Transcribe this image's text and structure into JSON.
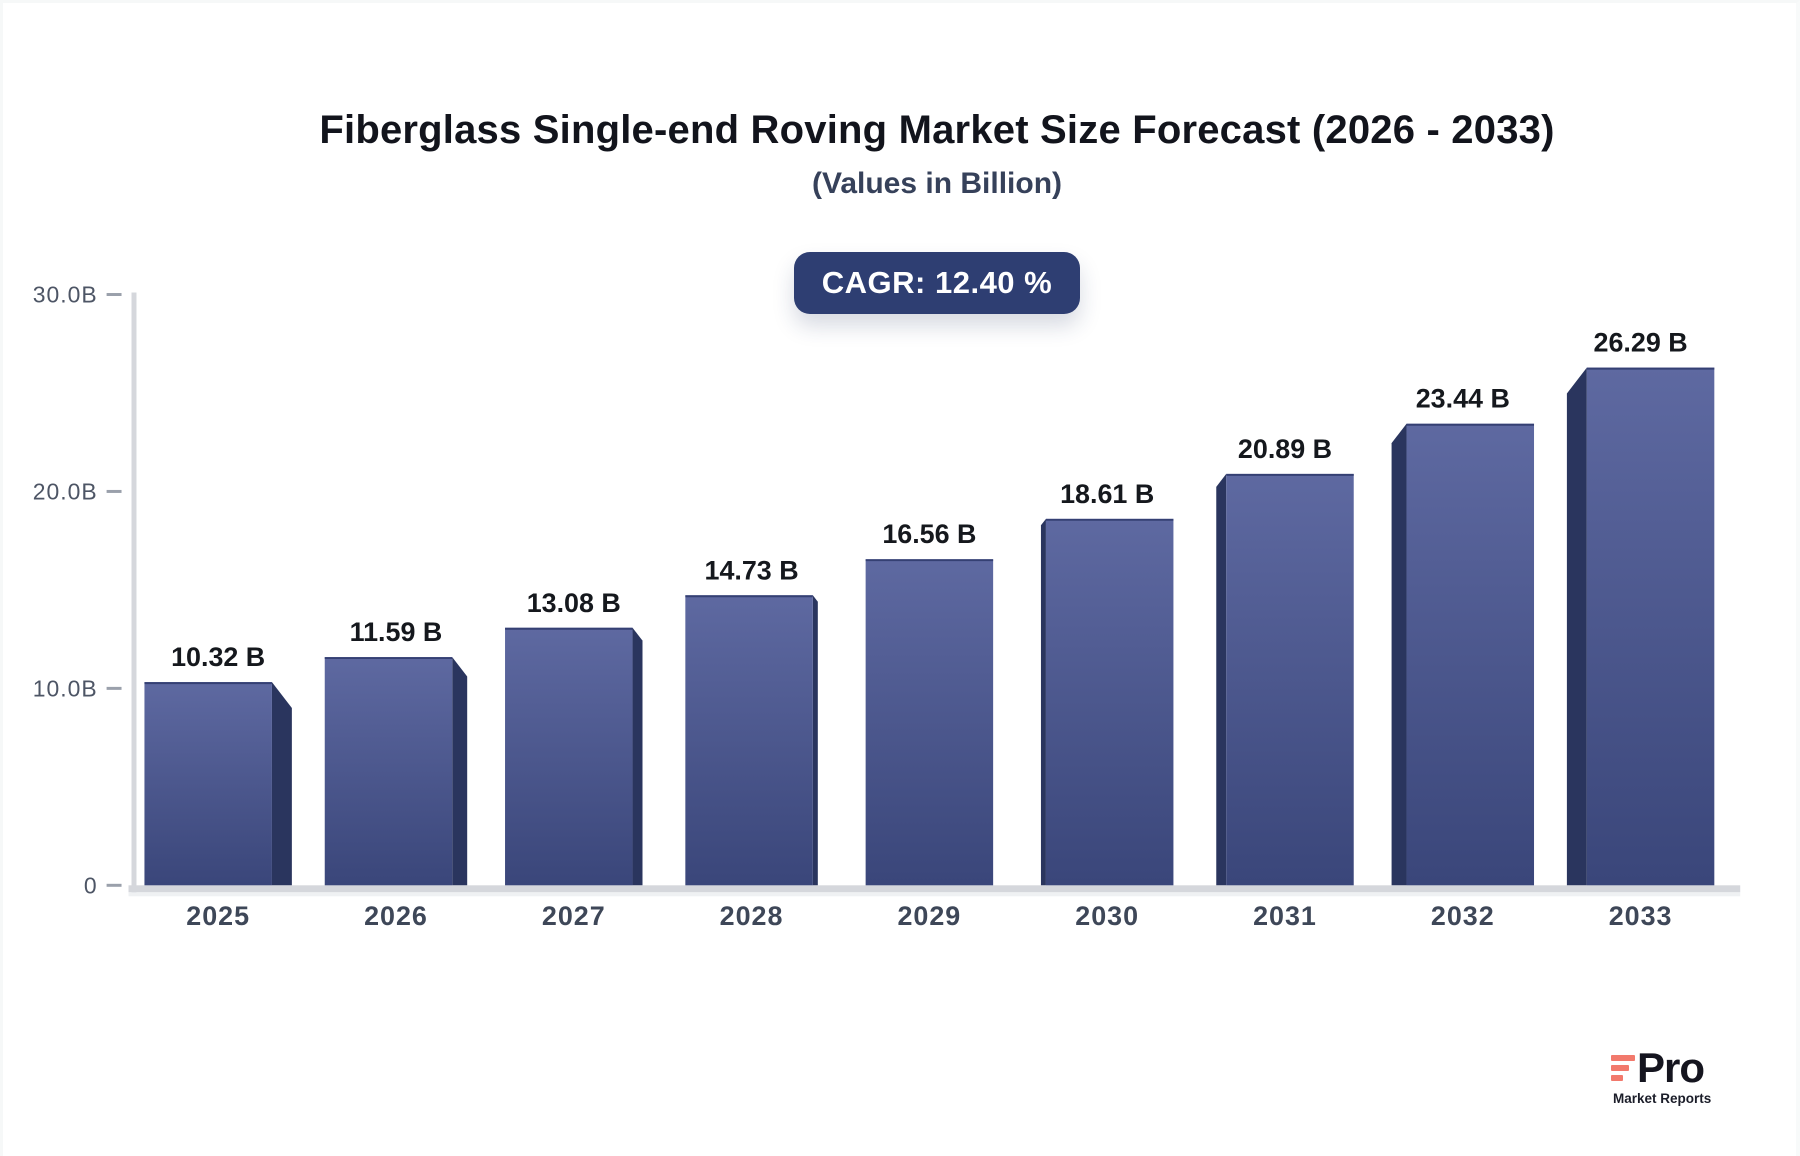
{
  "header": {
    "title": "Fiberglass Single-end Roving Market Size Forecast (2026 - 2033)",
    "subtitle": "(Values in Billion)",
    "cagr_badge": "CAGR: 12.40 %"
  },
  "chart_data": {
    "type": "bar",
    "title": "Fiberglass Single-end Roving Market Size Forecast (2026 - 2033)",
    "subtitle": "(Values in Billion)",
    "cagr_percent": 12.4,
    "categories": [
      "2025",
      "2026",
      "2027",
      "2028",
      "2029",
      "2030",
      "2031",
      "2032",
      "2033"
    ],
    "values": [
      10.32,
      11.59,
      13.08,
      14.73,
      16.56,
      18.61,
      20.89,
      23.44,
      26.29
    ],
    "value_labels": [
      "10.32 B",
      "11.59 B",
      "13.08 B",
      "14.73 B",
      "16.56 B",
      "18.61 B",
      "20.89 B",
      "23.44 B",
      "26.29 B"
    ],
    "xlabel": "",
    "ylabel": "",
    "ylim": [
      0,
      30
    ],
    "yticks": [
      {
        "v": 0,
        "label": "0"
      },
      {
        "v": 10,
        "label": "10.0B"
      },
      {
        "v": 20,
        "label": "20.0B"
      },
      {
        "v": 30,
        "label": "30.0B"
      }
    ],
    "grid": false,
    "legend": false,
    "colors": {
      "bar_face_top": "#5e69a1",
      "bar_face_bottom": "#3a467a",
      "bar_side": "#2a355e",
      "bar_top_edge": "#2f3a6c",
      "axis_line": "#d5d7dc",
      "axis_shadow": "#edeff2",
      "tick_dash": "#9aa0ab",
      "tick_label": "#4d5565",
      "x_label": "#3e4758",
      "value_label": "#15181d",
      "badge_bg": "#2e3e72",
      "badge_text": "#ffffff"
    }
  },
  "branding": {
    "name": "Pro",
    "tagline": "Market Reports",
    "accent": "#f2796c"
  }
}
